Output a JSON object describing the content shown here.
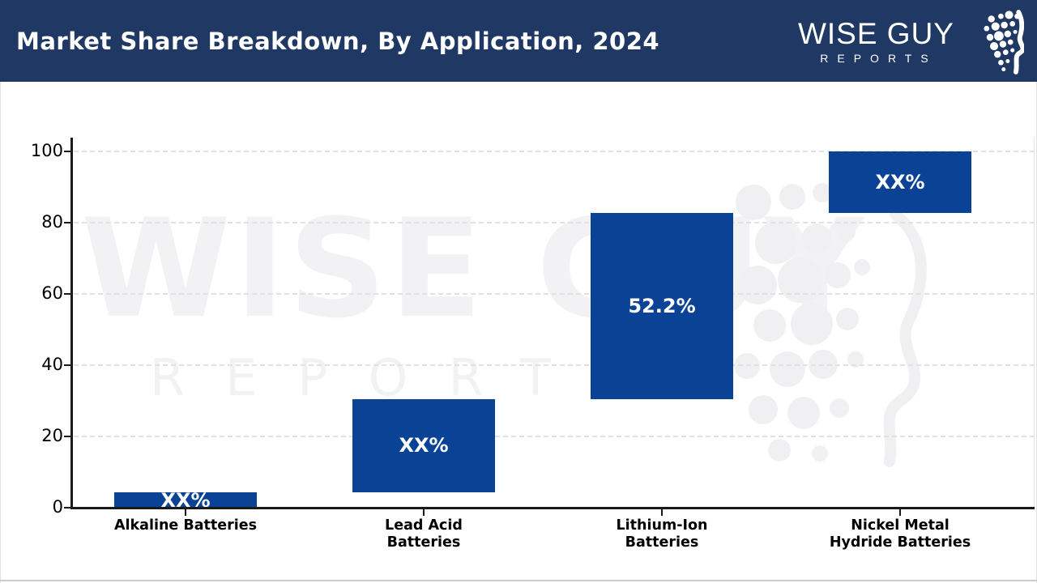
{
  "header": {
    "title": "Market Share Breakdown, By Application, 2024",
    "logo": {
      "line1": "WISE GUY",
      "line2": "REPORTS"
    }
  },
  "watermark": {
    "line1": "WISE GUY",
    "line2": "REPORTS"
  },
  "chart_data": {
    "type": "bar",
    "subtype": "floating-waterfall",
    "title": "Market Share Breakdown, By Application, 2024",
    "categories": [
      "Alkaline Batteries",
      "Lead Acid Batteries",
      "Lithium-Ion Batteries",
      "Nickel Metal Hydride Batteries"
    ],
    "category_lines": [
      [
        "Alkaline Batteries"
      ],
      [
        "Lead Acid",
        "Batteries"
      ],
      [
        "Lithium-Ion",
        "Batteries"
      ],
      [
        "Nickel Metal",
        "Hydride Batteries"
      ]
    ],
    "bars": [
      {
        "category": "Alkaline Batteries",
        "start": 0,
        "end": 4.3,
        "value": 4.3,
        "label": "XX%"
      },
      {
        "category": "Lead Acid Batteries",
        "start": 4.3,
        "end": 30.5,
        "value": 26.2,
        "label": "XX%"
      },
      {
        "category": "Lithium-Ion Batteries",
        "start": 30.5,
        "end": 82.7,
        "value": 52.2,
        "label": "52.2%"
      },
      {
        "category": "Nickel Metal Hydride Batteries",
        "start": 82.7,
        "end": 100,
        "value": 17.3,
        "label": "XX%"
      }
    ],
    "yticks": [
      0,
      20,
      40,
      60,
      80,
      100
    ],
    "ylim": [
      0,
      104
    ],
    "xlabel": "",
    "ylabel": "",
    "grid": "horizontal-dashed",
    "legend": "none",
    "bar_color": "#0a4296",
    "label_color": "#ffffff"
  },
  "colors": {
    "header_bg": "#1f3864",
    "axis": "#1a1a1a",
    "gridline": "#e1e1e1",
    "watermark": "#f2f2f4",
    "bottom_rule": "#cccccc"
  }
}
